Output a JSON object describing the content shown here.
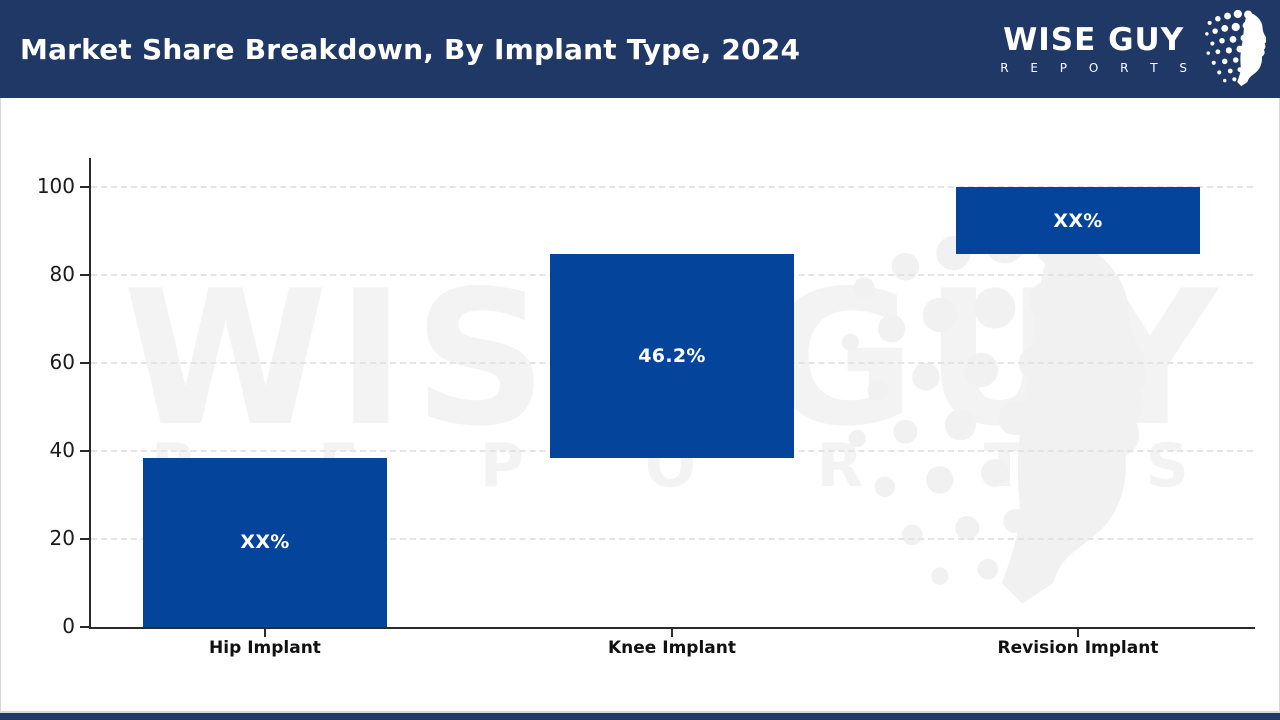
{
  "header": {
    "title": "Market Share Breakdown, By Implant Type, 2024",
    "background_color": "#1f3866"
  },
  "logo": {
    "line1": "WISE GUY",
    "line2": "R E P O R T S"
  },
  "watermark": {
    "line1": "WISE GUY",
    "line2": "R E P O R T S"
  },
  "chart_data": {
    "type": "bar",
    "subtype": "stacked-waterfall",
    "title": "Market Share Breakdown, By Implant Type, 2024",
    "categories": [
      "Hip Implant",
      "Knee Implant",
      "Revision Implant"
    ],
    "segments": [
      {
        "category": "Hip Implant",
        "start": 0,
        "end": 38.5,
        "label": "XX%"
      },
      {
        "category": "Knee Implant",
        "start": 38.5,
        "end": 84.7,
        "label": "46.2%"
      },
      {
        "category": "Revision Implant",
        "start": 84.7,
        "end": 100,
        "label": "XX%"
      }
    ],
    "yticks": [
      0,
      20,
      40,
      60,
      80,
      100
    ],
    "ylim": [
      0,
      106
    ],
    "xlabel": "",
    "ylabel": "",
    "grid": "dashed-horizontal",
    "legend": "none",
    "bar_color": "#05449b",
    "bar_label_color": "#ffffff"
  }
}
